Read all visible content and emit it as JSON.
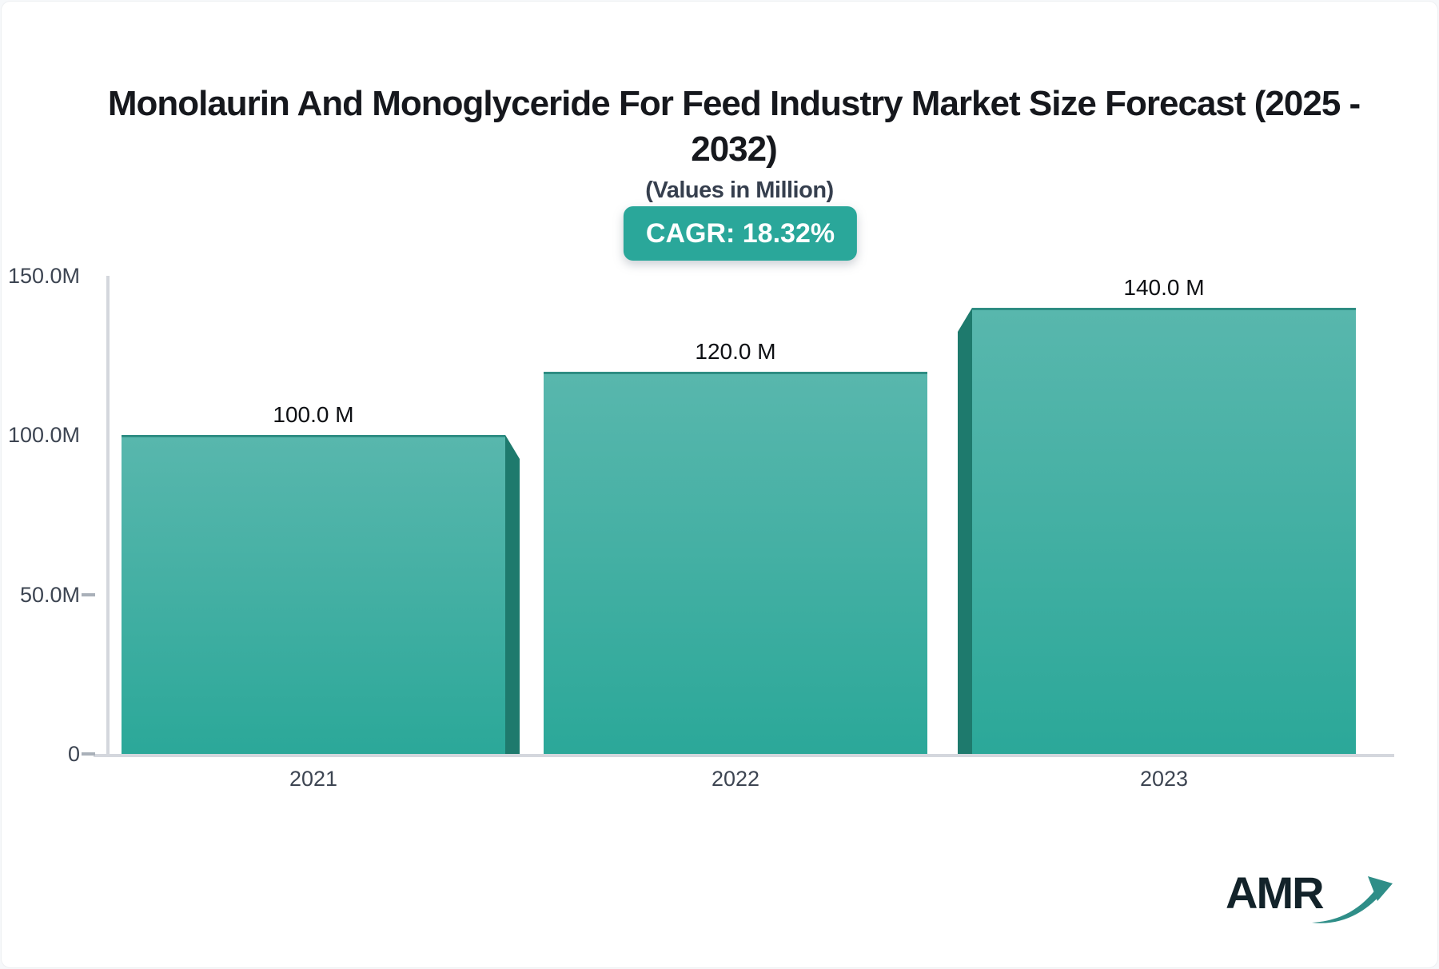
{
  "header": {
    "title_line1": "Monolaurin And Monoglyceride For Feed Industry Market Size Forecast (2025 -",
    "title_line2": "2032)",
    "subtitle": "(Values in Million)",
    "cagr_badge": "CAGR: 18.32%"
  },
  "chart_data": {
    "type": "bar",
    "title": "Monolaurin And Monoglyceride For Feed Industry Market Size Forecast (2025 - 2032)",
    "subtitle": "(Values in Million)",
    "cagr": "18.32%",
    "unit": "Million",
    "categories": [
      "2021",
      "2022",
      "2023"
    ],
    "values": [
      100.0,
      120.0,
      140.0
    ],
    "value_labels": [
      "100.0 M",
      "120.0 M",
      "140.0 M"
    ],
    "bar_3d_shadow_side": [
      "right",
      "none",
      "left"
    ],
    "ylim": [
      0,
      150
    ],
    "yticks": [
      {
        "label": "0",
        "value": 0,
        "dash": true
      },
      {
        "label": "50.0M",
        "value": 50,
        "dash": true
      },
      {
        "label": "100.0M",
        "value": 100,
        "dash": false
      },
      {
        "label": "150.0M",
        "value": 150,
        "dash": false
      }
    ],
    "grid": false,
    "legend": "none",
    "colors": {
      "bar_gradient_top": "#58b7ad",
      "bar_gradient_bottom": "#2ba899",
      "bar_top_edge": "#2e8d83",
      "bar_3d_side": "#1e7a6d",
      "badge_background": "#2aa79a",
      "badge_text": "#ffffff",
      "axis_line": "#d4d7dd",
      "tick_text": "#3d4552",
      "value_label_text": "#0d0f13",
      "title_text": "#16181d"
    }
  },
  "logo": {
    "text": "AMR",
    "arrow_icon": "growth-arrow-icon",
    "arrow_color": "#2f8e88"
  }
}
